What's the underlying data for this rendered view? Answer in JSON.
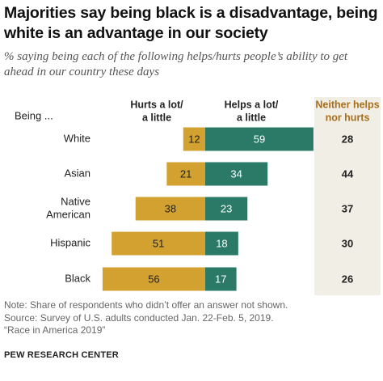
{
  "title": "Majorities say being black is a disadvantage, being white is an advantage in our society",
  "subtitle": "% saying being each of the following helps/hurts people’s ability to get ahead in our country these days",
  "row_header": "Being ...",
  "chart_data": {
    "type": "bar",
    "categories": [
      [
        "White"
      ],
      [
        "Asian"
      ],
      [
        "Native",
        "American"
      ],
      [
        "Hispanic"
      ],
      [
        "Black"
      ]
    ],
    "series": [
      {
        "name": "Hurts a lot/ a little",
        "name_lines": [
          "Hurts a lot/",
          "a little"
        ],
        "values": [
          12,
          21,
          38,
          51,
          56
        ],
        "color": "#d3a12f"
      },
      {
        "name": "Helps a lot/ a little",
        "name_lines": [
          "Helps a lot/",
          "a little"
        ],
        "values": [
          59,
          34,
          23,
          18,
          17
        ],
        "color": "#2b7a67"
      }
    ],
    "neither": {
      "name": "Neither helps nor hurts",
      "name_lines": [
        "Neither helps",
        "nor hurts"
      ],
      "values": [
        28,
        44,
        37,
        30,
        26
      ],
      "color": "#a86e1a",
      "band_color": "#f1eee6"
    }
  },
  "note": {
    "lines": [
      "Note: Share of respondents who didn’t offer an answer not shown.",
      "Source: Survey of U.S. adults conducted Jan. 22-Feb. 5, 2019.",
      "“Race in America 2019”"
    ]
  },
  "source_org": "PEW RESEARCH CENTER"
}
